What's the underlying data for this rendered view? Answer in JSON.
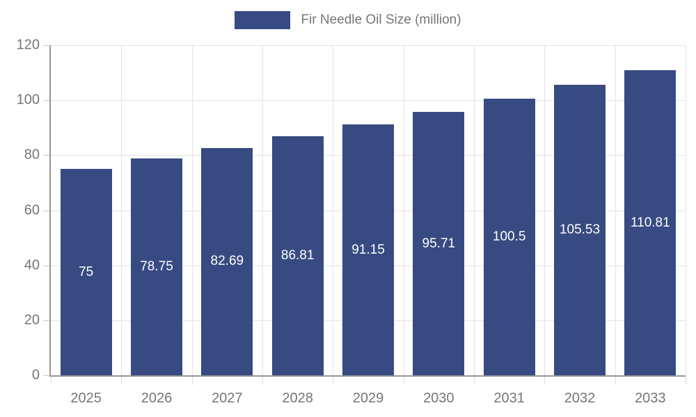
{
  "legend": {
    "label": "Fir Needle Oil Size (million)",
    "swatch_color": "#374B82"
  },
  "chart_data": {
    "type": "bar",
    "title": "Fir Needle Oil Size (million)",
    "categories": [
      "2025",
      "2026",
      "2027",
      "2028",
      "2029",
      "2030",
      "2031",
      "2032",
      "2033"
    ],
    "values": [
      75,
      78.75,
      82.69,
      86.81,
      91.15,
      95.71,
      100.5,
      105.53,
      110.81
    ],
    "value_labels": [
      "75",
      "78.75",
      "82.69",
      "86.81",
      "91.15",
      "95.71",
      "100.5",
      "105.53",
      "110.81"
    ],
    "xlabel": "",
    "ylabel": "",
    "ylim": [
      0,
      120
    ],
    "yticks": [
      0,
      20,
      40,
      60,
      80,
      100,
      120
    ],
    "grid": true,
    "legend_position": "top-center",
    "bar_color": "#374B82",
    "value_label_color": "#ffffff",
    "tick_text_color": "#757575",
    "grid_color": "#e3e3e3",
    "axis_color": "#969696"
  }
}
